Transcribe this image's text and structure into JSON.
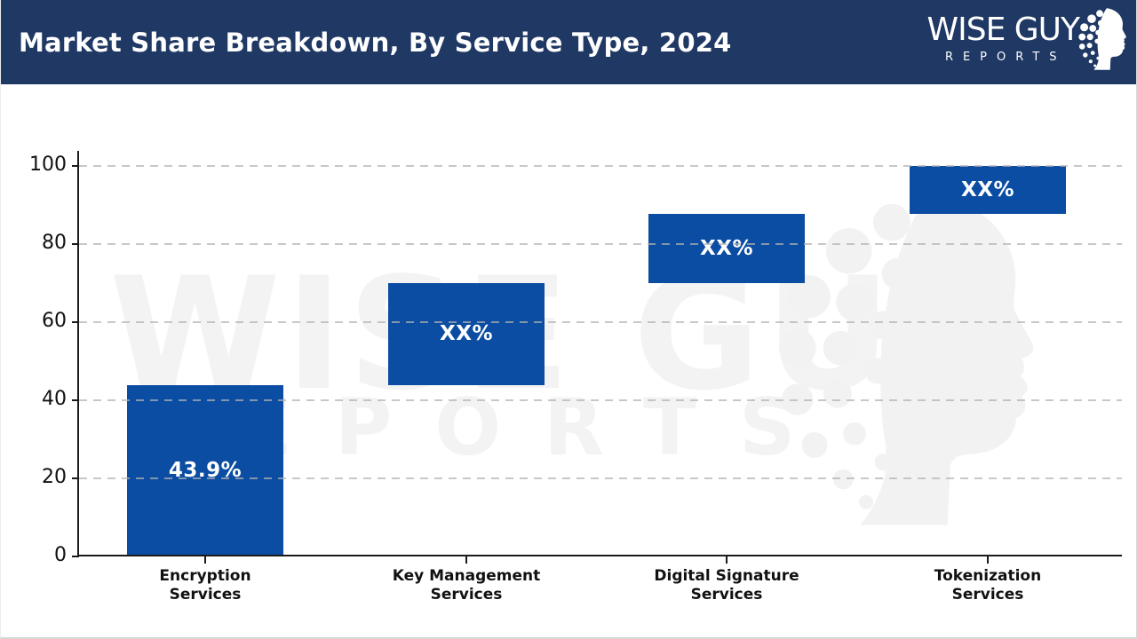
{
  "header": {
    "title": "Market Share Breakdown, By Service Type, 2024",
    "logo": {
      "wordmark": "WISE GUY",
      "subtext": "REPORTS"
    }
  },
  "watermark": {
    "wordmark": "WISE GUY",
    "subtext": "REPORTS"
  },
  "colors": {
    "header_bg": "#1f3864",
    "bar_blue": "#0b4da2",
    "watermark_gray": "#f3f3f3",
    "axis_black": "#1a1a1a",
    "gridline_gray": "#cfcfcf"
  },
  "chart_data": {
    "type": "bar",
    "subtype": "waterfall",
    "title": "Market Share Breakdown, By Service Type, 2024",
    "xlabel": "",
    "ylabel": "",
    "categories": [
      "Encryption\nServices",
      "Key Management\nServices",
      "Digital Signature\nServices",
      "Tokenization\nServices"
    ],
    "segments": [
      {
        "category": "Encryption Services",
        "start": 0,
        "end": 43.9,
        "value": 43.9,
        "label": "43.9%"
      },
      {
        "category": "Key Management Services",
        "start": 43.9,
        "end": 70.0,
        "value": 26.1,
        "label": "XX%"
      },
      {
        "category": "Digital Signature Services",
        "start": 70.0,
        "end": 87.7,
        "value": 17.7,
        "label": "XX%"
      },
      {
        "category": "Tokenization Services",
        "start": 87.7,
        "end": 100.0,
        "value": 12.3,
        "label": "XX%"
      }
    ],
    "yticks": [
      0,
      20,
      40,
      60,
      80,
      100
    ],
    "ylim": [
      0,
      100
    ],
    "grid": true,
    "legend": false,
    "bar_color": "#0b4da2",
    "label_color": "#ffffff"
  }
}
